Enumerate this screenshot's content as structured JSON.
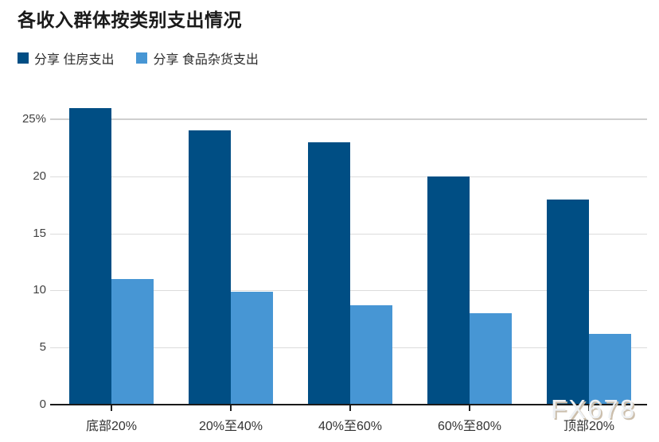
{
  "title": "各收入群体按类别支出情况",
  "legend": [
    {
      "label": "分享 住房支出",
      "color": "#004e84"
    },
    {
      "label": "分享 食品杂货支出",
      "color": "#4796d4"
    }
  ],
  "watermark": "FX678",
  "chart_data": {
    "type": "bar",
    "title": "各收入群体按类别支出情况",
    "categories": [
      "底部20%",
      "20%至40%",
      "40%至60%",
      "60%至80%",
      "顶部20%"
    ],
    "series": [
      {
        "name": "分享 住房支出",
        "color": "#004e84",
        "values": [
          26,
          24,
          23,
          20,
          18
        ]
      },
      {
        "name": "分享 食品杂货支出",
        "color": "#4796d4",
        "values": [
          11,
          9.9,
          8.7,
          8,
          6.2
        ]
      }
    ],
    "xlabel": "",
    "ylabel": "",
    "ylim": [
      0,
      26.5
    ],
    "yticks": [
      0,
      5,
      10,
      15,
      20,
      25
    ],
    "ytick_labels": [
      "0",
      "5",
      "10",
      "15",
      "20",
      "25%"
    ],
    "grid": true,
    "legend_position": "top-left"
  }
}
